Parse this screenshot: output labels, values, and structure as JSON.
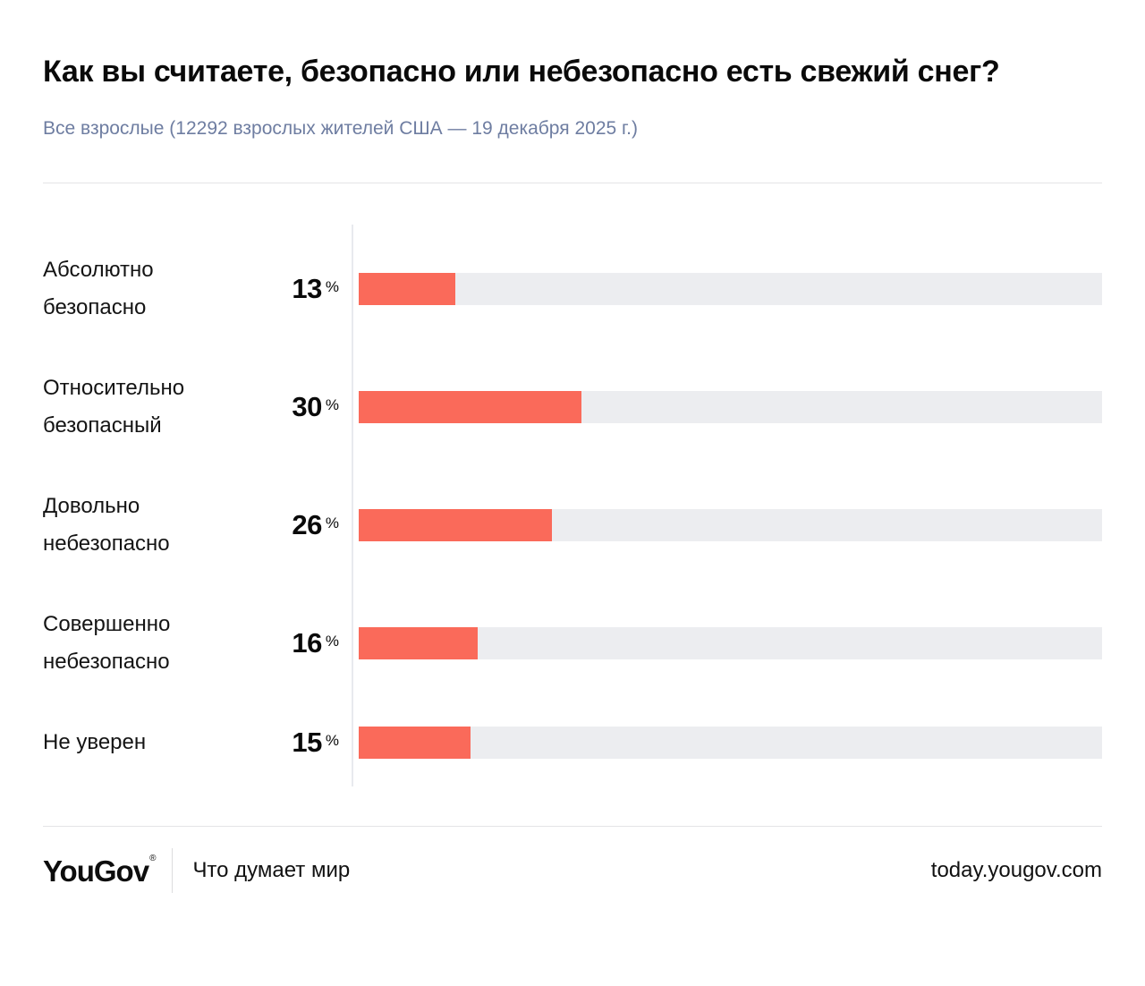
{
  "header": {
    "title": "Как вы считаете, безопасно или небезопасно есть свежий снег?",
    "subtitle": "Все взрослые (12292 взрослых жителей США — 19 декабря 2025 г.)"
  },
  "chart_data": {
    "type": "bar",
    "orientation": "horizontal",
    "title": "Как вы считаете, безопасно или небезопасно есть свежий снег?",
    "subtitle": "Все взрослые (12292 взрослых жителей США — 19 декабря 2025 г.)",
    "categories": [
      "Абсолютно безопасно",
      "Относительно безопасный",
      "Довольно небезопасно",
      "Совершенно небезопасно",
      "Не уверен"
    ],
    "values": [
      13,
      30,
      26,
      16,
      15
    ],
    "unit": "%",
    "xlim": [
      0,
      100
    ],
    "grid": false,
    "legend": false,
    "bar_color": "#FA6A5A",
    "track_color": "#ECEDF0",
    "rows": [
      {
        "label": "Абсолютно\nбезопасно",
        "value": "13",
        "width": 13
      },
      {
        "label": "Относительно\nбезопасный",
        "value": "30",
        "width": 30
      },
      {
        "label": "Довольно\nнебезопасно",
        "value": "26",
        "width": 26
      },
      {
        "label": "Совершенно\nнебезопасно",
        "value": "16",
        "width": 16
      },
      {
        "label": "Не уверен",
        "value": "15",
        "width": 15
      }
    ]
  },
  "footer": {
    "logo": "YouGov",
    "registered": "®",
    "tagline": "Что думает мир",
    "site": "today.yougov.com"
  }
}
